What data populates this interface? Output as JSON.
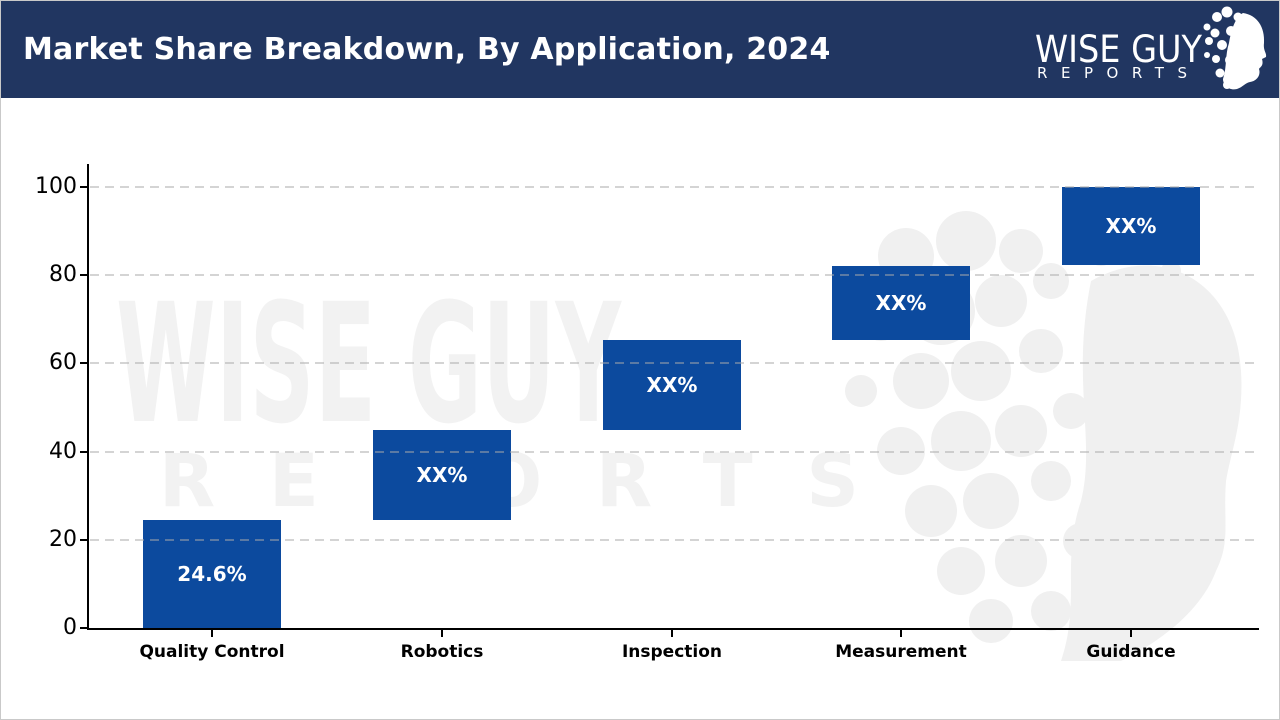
{
  "header": {
    "title": "Market Share Breakdown, By Application, 2024",
    "bg_color": "#213661"
  },
  "logo": {
    "line1": "WISE GUY",
    "line2": "REPORTS"
  },
  "watermark": {
    "line1": "WISE GUY",
    "line2": "REPORTS"
  },
  "chart_data": {
    "type": "bar",
    "subtype": "waterfall",
    "title": "Market Share Breakdown, By Application, 2024",
    "categories": [
      "Quality Control",
      "Robotics",
      "Inspection",
      "Measurement",
      "Guidance"
    ],
    "segments": [
      {
        "category": "Quality Control",
        "start": 0,
        "end": 24.6,
        "label": "24.6%"
      },
      {
        "category": "Robotics",
        "start": 24.6,
        "end": 45.0,
        "label": "XX%"
      },
      {
        "category": "Inspection",
        "start": 45.0,
        "end": 65.2,
        "label": "XX%"
      },
      {
        "category": "Measurement",
        "start": 65.4,
        "end": 82.1,
        "label": "XX%"
      },
      {
        "category": "Guidance",
        "start": 82.3,
        "end": 100,
        "label": "XX%"
      }
    ],
    "yticks": [
      0,
      20,
      40,
      60,
      80,
      100
    ],
    "ylim": [
      0,
      105
    ],
    "grid": true,
    "legend": "none",
    "bar_color": "#0c4a9e",
    "grid_color": "#d9d9d9",
    "axis_color": "#000000",
    "watermark_color": "#f2f2f2"
  }
}
